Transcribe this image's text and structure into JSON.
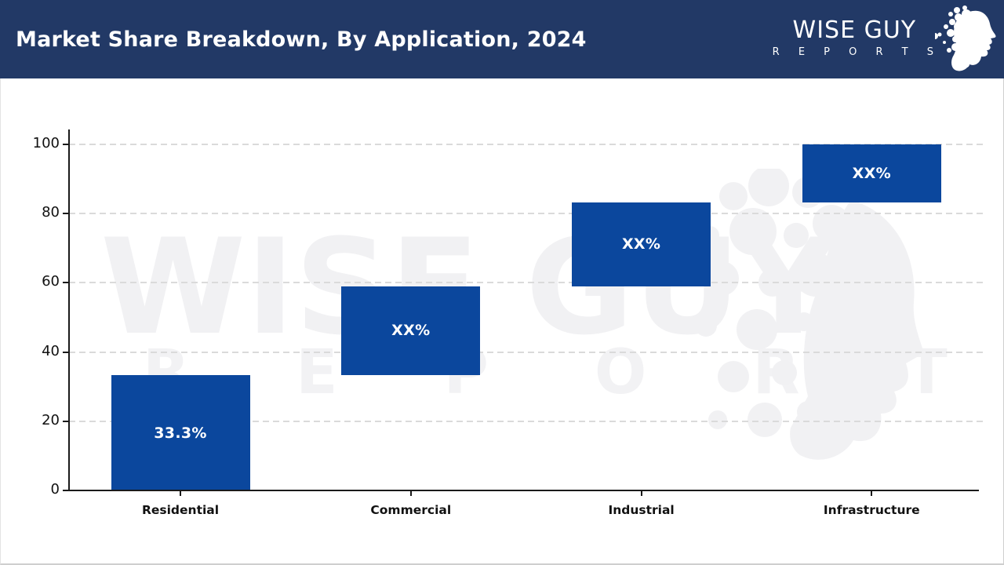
{
  "header": {
    "title": "Market Share Breakdown, By Application, 2024",
    "bg_color": "#223966",
    "logo": {
      "line1": "WISE GUY",
      "line2": "R E P O R T S"
    }
  },
  "watermark": {
    "line1": "WISE GUY",
    "line2": "R E P O R T S"
  },
  "chart_data": {
    "type": "bar",
    "subtype": "waterfall",
    "title": "Market Share Breakdown, By Application, 2024",
    "categories": [
      "Residential",
      "Commercial",
      "Industrial",
      "Infrastructure"
    ],
    "series": [
      {
        "name": "Market Share",
        "segments": [
          {
            "category": "Residential",
            "start": 0,
            "end": 33.3,
            "label": "33.3%"
          },
          {
            "category": "Commercial",
            "start": 33.3,
            "end": 59.0,
            "label": "XX%"
          },
          {
            "category": "Industrial",
            "start": 59.0,
            "end": 83.3,
            "label": "XX%"
          },
          {
            "category": "Infrastructure",
            "start": 83.3,
            "end": 100,
            "label": "XX%"
          }
        ]
      }
    ],
    "xlabel": "",
    "ylabel": "",
    "yticks": [
      0,
      20,
      40,
      60,
      80,
      100
    ],
    "ylim": [
      0,
      105
    ],
    "grid": "horizontal-dashed",
    "bar_color": "#0b479d",
    "bar_label_color": "#ffffff",
    "axis_color": "#1a1a1a",
    "gridline_color": "#dadada"
  }
}
